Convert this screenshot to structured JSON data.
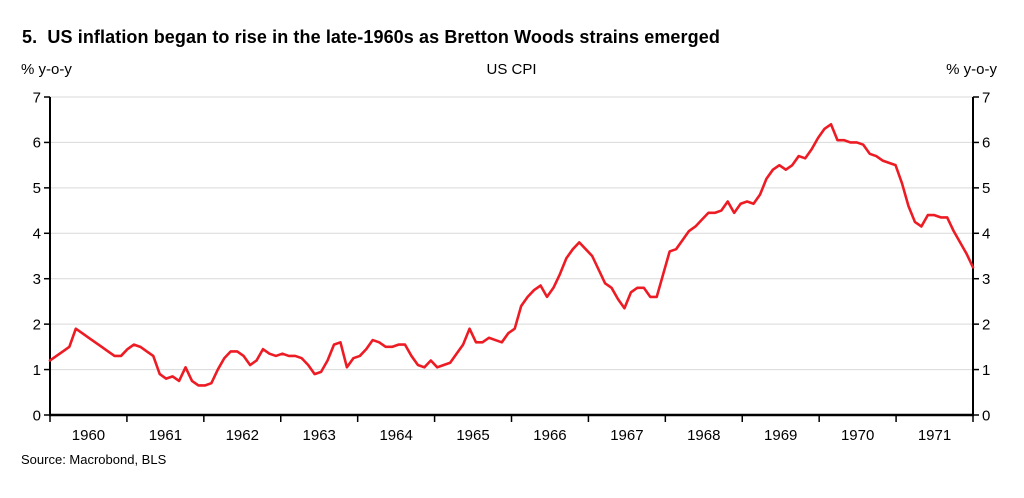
{
  "figure": {
    "title": "5.  US inflation began to rise in the late-1960s as Bretton Woods strains emerged",
    "left_axis_header": "% y-o-y",
    "chart_label": "US CPI",
    "right_axis_header": "% y-o-y",
    "source": "Source: Macrobond, BLS"
  },
  "chart_data": {
    "type": "line",
    "title": "US CPI",
    "subtitle_unit": "% y-o-y",
    "frequency": "monthly",
    "x_start": "1960-01",
    "x_end": "1971-12",
    "x_tick_labels": [
      "1960",
      "1961",
      "1962",
      "1963",
      "1964",
      "1965",
      "1966",
      "1967",
      "1968",
      "1969",
      "1970",
      "1971"
    ],
    "y_ticks": [
      0,
      1,
      2,
      3,
      4,
      5,
      6,
      7
    ],
    "ylim": [
      0,
      7
    ],
    "grid": "horizontal",
    "legend": "none",
    "line_color": "#ed1c24",
    "grid_color": "#d9d9d9",
    "axis_color": "#000000",
    "series": [
      {
        "name": "US CPI, % y-o-y",
        "values": [
          1.2,
          1.3,
          1.4,
          1.5,
          1.9,
          1.8,
          1.7,
          1.6,
          1.5,
          1.4,
          1.3,
          1.3,
          1.45,
          1.55,
          1.5,
          1.4,
          1.3,
          0.9,
          0.8,
          0.85,
          0.75,
          1.05,
          0.75,
          0.65,
          0.65,
          0.7,
          1.0,
          1.25,
          1.4,
          1.4,
          1.3,
          1.1,
          1.2,
          1.45,
          1.35,
          1.3,
          1.35,
          1.3,
          1.3,
          1.25,
          1.1,
          0.9,
          0.95,
          1.2,
          1.55,
          1.6,
          1.05,
          1.25,
          1.3,
          1.45,
          1.65,
          1.6,
          1.5,
          1.5,
          1.55,
          1.55,
          1.3,
          1.1,
          1.05,
          1.2,
          1.05,
          1.1,
          1.15,
          1.35,
          1.55,
          1.9,
          1.6,
          1.6,
          1.7,
          1.65,
          1.6,
          1.8,
          1.9,
          2.4,
          2.6,
          2.75,
          2.85,
          2.6,
          2.8,
          3.1,
          3.45,
          3.65,
          3.8,
          3.65,
          3.5,
          3.2,
          2.9,
          2.8,
          2.55,
          2.35,
          2.7,
          2.8,
          2.8,
          2.6,
          2.6,
          3.1,
          3.6,
          3.65,
          3.85,
          4.05,
          4.15,
          4.3,
          4.45,
          4.45,
          4.5,
          4.7,
          4.45,
          4.65,
          4.7,
          4.65,
          4.85,
          5.2,
          5.4,
          5.5,
          5.4,
          5.5,
          5.7,
          5.65,
          5.85,
          6.1,
          6.3,
          6.4,
          6.05,
          6.05,
          6.0,
          6.0,
          5.95,
          5.75,
          5.7,
          5.6,
          5.55,
          5.5,
          5.1,
          4.6,
          4.25,
          4.15,
          4.4,
          4.4,
          4.35,
          4.35,
          4.05,
          3.8,
          3.55,
          3.25
        ]
      }
    ]
  }
}
